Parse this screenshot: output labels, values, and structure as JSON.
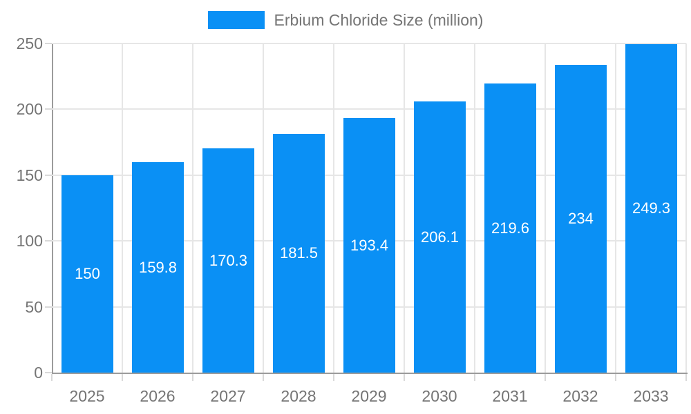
{
  "chart_data": {
    "type": "bar",
    "title": "",
    "legend": "Erbium Chloride Size (million)",
    "legend_position": "top",
    "categories": [
      "2025",
      "2026",
      "2027",
      "2028",
      "2029",
      "2030",
      "2031",
      "2032",
      "2033"
    ],
    "series": [
      {
        "name": "Erbium Chloride Size (million)",
        "values": [
          150,
          159.8,
          170.3,
          181.5,
          193.4,
          206.1,
          219.6,
          234,
          249.3
        ],
        "value_labels": [
          "150",
          "159.8",
          "170.3",
          "181.5",
          "193.4",
          "206.1",
          "219.6",
          "234",
          "249.3"
        ]
      }
    ],
    "xlabel": "",
    "ylabel": "",
    "ylim": [
      0,
      250
    ],
    "yticks": [
      0,
      50,
      100,
      150,
      200,
      250
    ],
    "grid": true,
    "colors": {
      "bar": "#0a90f5",
      "grid_line": "#e6e6e6",
      "axis_line": "#9b9b9b",
      "tick_line": "#d9d9d9",
      "axis_text": "#757575",
      "bar_label": "#ffffff",
      "background": "#ffffff"
    }
  }
}
